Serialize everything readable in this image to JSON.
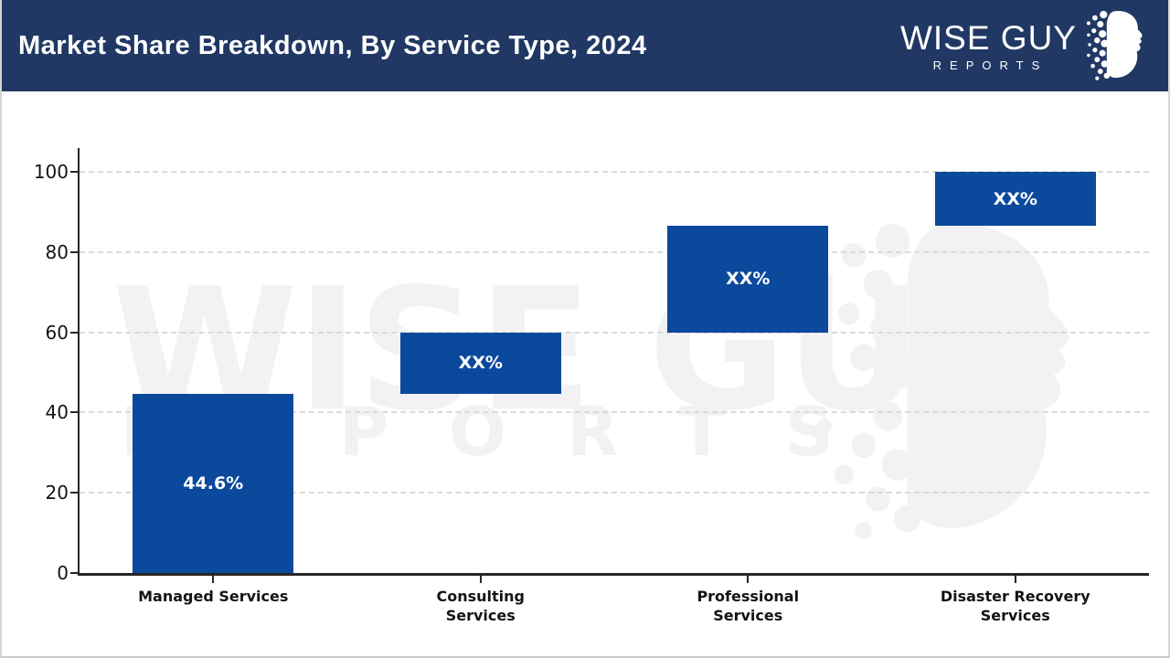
{
  "header": {
    "title": "Market Share Breakdown, By Service Type, 2024",
    "bg_color": "#213864",
    "logo": {
      "line1": "WISE GUY",
      "line2": "REPORTS"
    }
  },
  "watermark": {
    "line1": "WISE GUY",
    "line2": "R E P O R T S"
  },
  "chart_data": {
    "type": "bar",
    "subtype": "waterfall",
    "title": "Market Share Breakdown, By Service Type, 2024",
    "categories": [
      [
        "Managed Services"
      ],
      [
        "Consulting",
        "Services"
      ],
      [
        "Professional",
        "Services"
      ],
      [
        "Disaster Recovery",
        "Services"
      ]
    ],
    "segments": [
      {
        "name": "Managed Services",
        "start": 0,
        "end": 44.6,
        "value_label": "44.6%"
      },
      {
        "name": "Consulting Services",
        "start": 44.6,
        "end": 60,
        "value_label": "XX%"
      },
      {
        "name": "Professional Services",
        "start": 60,
        "end": 86.5,
        "value_label": "XX%"
      },
      {
        "name": "Disaster Recovery Services",
        "start": 86.5,
        "end": 100,
        "value_label": "XX%"
      }
    ],
    "ylim": [
      0,
      100
    ],
    "yticks": [
      0,
      20,
      40,
      60,
      80,
      100
    ],
    "xlabel": "",
    "ylabel": "",
    "grid": "horizontal-dashed",
    "legend": "none",
    "bar_color": "#0b499c",
    "bar_label_color": "#ffffff"
  }
}
